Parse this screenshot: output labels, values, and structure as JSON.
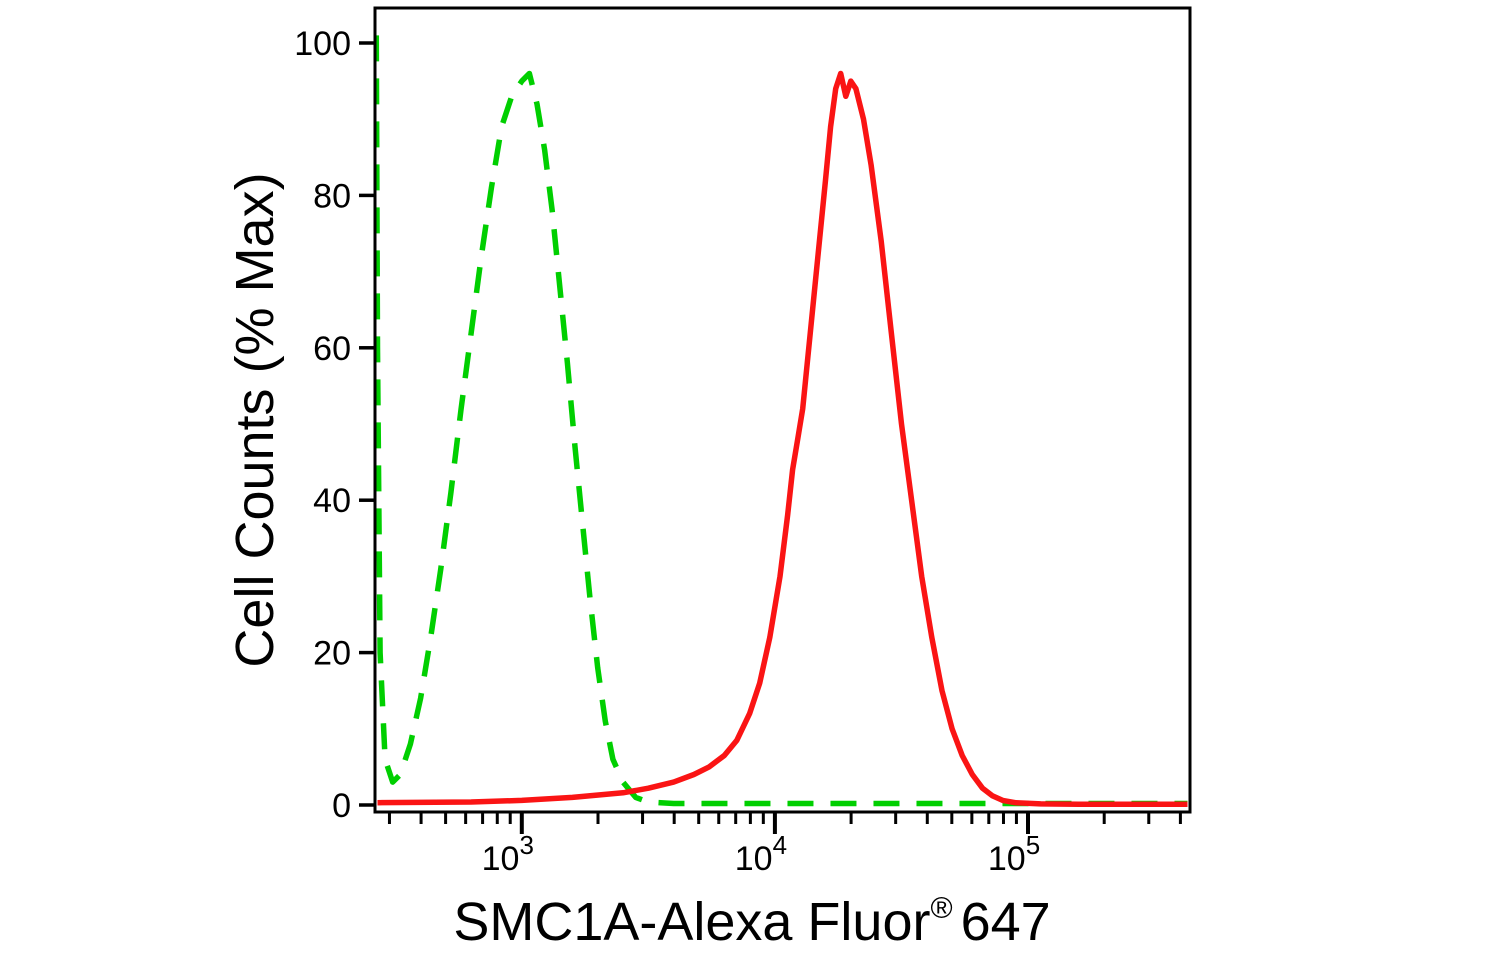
{
  "page": {
    "background": "#ffffff"
  },
  "chart_data": {
    "type": "line",
    "subtype": "flow-cytometry-histogram",
    "title": "",
    "xlabel": "SMC1A-Alexa Fluor® 647",
    "xlabel_parts": {
      "text": "SMC1A-Alexa Fluor",
      "sup": "®",
      "suffix": "647"
    },
    "ylabel": "Cell Counts (% Max)",
    "x_scale": "log",
    "x_range_log10": [
      2.42,
      5.64
    ],
    "ylim": [
      0,
      100
    ],
    "grid": false,
    "legend": "none",
    "axis_color": "#000000",
    "y_ticks": [
      {
        "value": 0,
        "label": "0"
      },
      {
        "value": 20,
        "label": "20"
      },
      {
        "value": 40,
        "label": "40"
      },
      {
        "value": 60,
        "label": "60"
      },
      {
        "value": 80,
        "label": "80"
      },
      {
        "value": 100,
        "label": "100"
      }
    ],
    "x_major_ticks": [
      {
        "log10": 3,
        "base": "10",
        "exp": "3",
        "value": 1000
      },
      {
        "log10": 4,
        "base": "10",
        "exp": "4",
        "value": 10000
      },
      {
        "log10": 5,
        "base": "10",
        "exp": "5",
        "value": 100000
      }
    ],
    "x_minor_tick_mantissas": [
      2,
      3,
      4,
      5,
      6,
      7,
      8,
      9
    ],
    "series": [
      {
        "name": "green-dashed-control",
        "color": "#00cf00",
        "style": "dashed",
        "line_width": 5.5,
        "peak_x": 1050,
        "peak_pct": 96,
        "points_log10x_pct": [
          [
            2.425,
            101
          ],
          [
            2.43,
            60
          ],
          [
            2.44,
            20
          ],
          [
            2.46,
            6
          ],
          [
            2.49,
            3
          ],
          [
            2.52,
            4
          ],
          [
            2.56,
            8
          ],
          [
            2.6,
            14
          ],
          [
            2.64,
            22
          ],
          [
            2.68,
            31
          ],
          [
            2.72,
            41
          ],
          [
            2.76,
            52
          ],
          [
            2.8,
            62
          ],
          [
            2.84,
            72
          ],
          [
            2.88,
            81
          ],
          [
            2.92,
            89
          ],
          [
            2.96,
            93
          ],
          [
            3.0,
            95
          ],
          [
            3.03,
            96
          ],
          [
            3.06,
            92
          ],
          [
            3.09,
            86
          ],
          [
            3.12,
            78
          ],
          [
            3.15,
            68
          ],
          [
            3.18,
            58
          ],
          [
            3.21,
            47
          ],
          [
            3.24,
            37
          ],
          [
            3.27,
            27
          ],
          [
            3.3,
            18
          ],
          [
            3.33,
            11
          ],
          [
            3.36,
            6
          ],
          [
            3.4,
            3
          ],
          [
            3.45,
            1
          ],
          [
            3.5,
            0.4
          ],
          [
            3.6,
            0.2
          ],
          [
            4.0,
            0.2
          ],
          [
            4.5,
            0.2
          ],
          [
            5.0,
            0.2
          ],
          [
            5.63,
            0.2
          ]
        ]
      },
      {
        "name": "red-solid-smc1a",
        "color": "#fa1414",
        "style": "solid",
        "line_width": 5.5,
        "peak_x": 18000,
        "peak_pct": 96,
        "points_log10x_pct": [
          [
            2.43,
            0.3
          ],
          [
            2.8,
            0.4
          ],
          [
            3.0,
            0.6
          ],
          [
            3.2,
            1.0
          ],
          [
            3.4,
            1.6
          ],
          [
            3.5,
            2.2
          ],
          [
            3.6,
            3.0
          ],
          [
            3.68,
            4.0
          ],
          [
            3.74,
            5.0
          ],
          [
            3.8,
            6.5
          ],
          [
            3.85,
            8.5
          ],
          [
            3.9,
            12
          ],
          [
            3.94,
            16
          ],
          [
            3.98,
            22
          ],
          [
            4.02,
            30
          ],
          [
            4.05,
            38
          ],
          [
            4.07,
            44
          ],
          [
            4.09,
            48
          ],
          [
            4.11,
            52
          ],
          [
            4.14,
            62
          ],
          [
            4.17,
            72
          ],
          [
            4.2,
            82
          ],
          [
            4.22,
            89
          ],
          [
            4.24,
            94
          ],
          [
            4.26,
            96
          ],
          [
            4.28,
            93
          ],
          [
            4.3,
            95
          ],
          [
            4.32,
            94
          ],
          [
            4.35,
            90
          ],
          [
            4.38,
            84
          ],
          [
            4.42,
            74
          ],
          [
            4.46,
            62
          ],
          [
            4.5,
            50
          ],
          [
            4.54,
            40
          ],
          [
            4.58,
            30
          ],
          [
            4.62,
            22
          ],
          [
            4.66,
            15
          ],
          [
            4.7,
            10
          ],
          [
            4.74,
            6.5
          ],
          [
            4.78,
            4
          ],
          [
            4.82,
            2.2
          ],
          [
            4.86,
            1.2
          ],
          [
            4.9,
            0.6
          ],
          [
            4.95,
            0.3
          ],
          [
            5.05,
            0.15
          ],
          [
            5.2,
            0.1
          ],
          [
            5.63,
            0.1
          ]
        ]
      }
    ]
  }
}
